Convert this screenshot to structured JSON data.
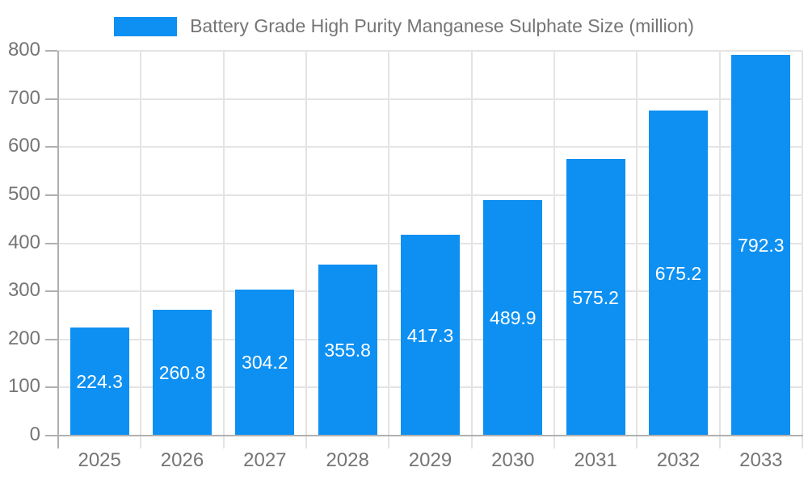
{
  "chart_data": {
    "type": "bar",
    "title": "Battery Grade High Purity Manganese Sulphate Size (million)",
    "legend_position": "top",
    "categories": [
      "2025",
      "2026",
      "2027",
      "2028",
      "2029",
      "2030",
      "2031",
      "2032",
      "2033"
    ],
    "series": [
      {
        "name": "Battery Grade High Purity Manganese Sulphate Size (million)",
        "values": [
          224.3,
          260.8,
          304.2,
          355.8,
          417.3,
          489.9,
          575.2,
          675.2,
          792.3
        ]
      }
    ],
    "value_labels": [
      "224.3",
      "260.8",
      "304.2",
      "355.8",
      "417.3",
      "489.9",
      "575.2",
      "675.2",
      "792.3"
    ],
    "xlabel": "",
    "ylabel": "",
    "ylim": [
      0,
      800
    ],
    "ytick_step": 100,
    "yticks": [
      "0",
      "100",
      "200",
      "300",
      "400",
      "500",
      "600",
      "700",
      "800"
    ],
    "grid": true,
    "colors": {
      "bar": "#0e90f2",
      "grid": "#e4e4e4",
      "axis": "#b0b0b0",
      "tick_text": "#757575",
      "value_label": "#ffffff",
      "background": "#ffffff"
    }
  }
}
